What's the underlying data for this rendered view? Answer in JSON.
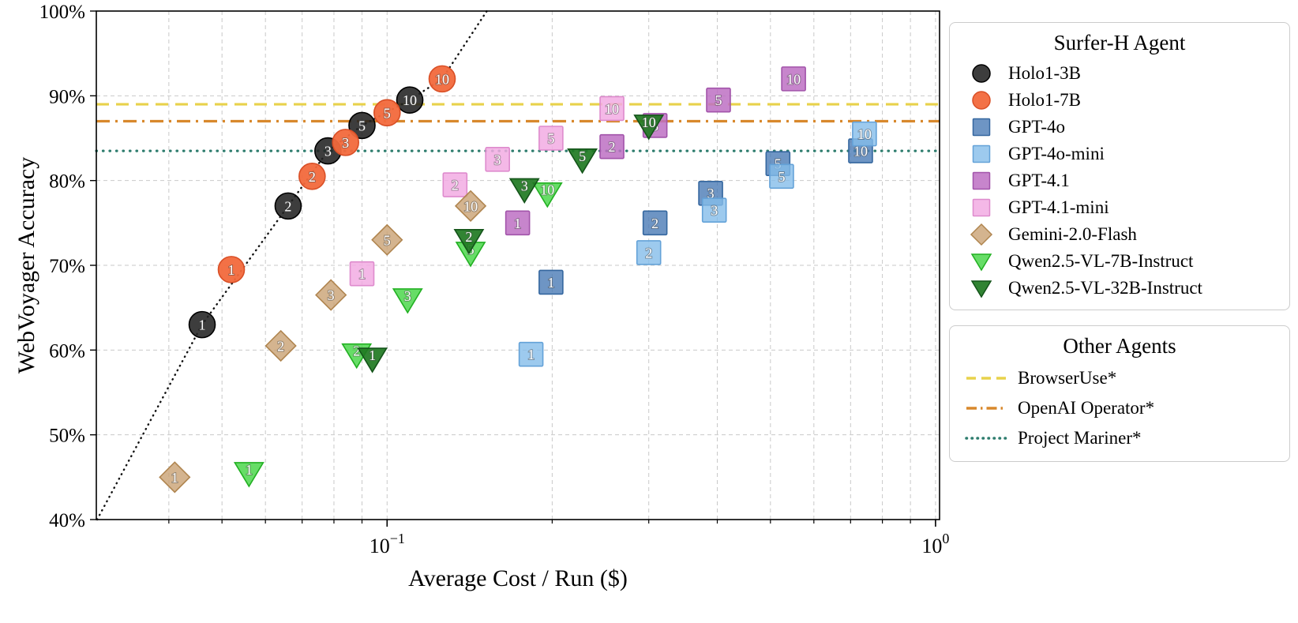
{
  "chart_data": {
    "type": "scatter",
    "title": "",
    "xlabel": "Average Cost / Run ($)",
    "ylabel": "WebVoyager Accuracy",
    "x_scale": "log",
    "xlim": [
      0.0295,
      1.017
    ],
    "ylim": [
      40,
      100
    ],
    "grid": true,
    "y_ticks": [
      {
        "value": 40,
        "label": "40%"
      },
      {
        "value": 50,
        "label": "50%"
      },
      {
        "value": 60,
        "label": "60%"
      },
      {
        "value": 70,
        "label": "70%"
      },
      {
        "value": 80,
        "label": "80%"
      },
      {
        "value": 90,
        "label": "90%"
      },
      {
        "value": 100,
        "label": "100%"
      }
    ],
    "x_major_ticks": [
      {
        "value": 0.1,
        "mantissa": "10",
        "exponent": "−1"
      },
      {
        "value": 1.0,
        "mantissa": "10",
        "exponent": "0"
      }
    ],
    "x_minor_ticks": [
      0.04,
      0.05,
      0.06,
      0.07,
      0.08,
      0.09,
      0.1,
      0.2,
      0.3,
      0.4,
      0.5,
      0.6,
      0.7,
      0.8,
      0.9,
      1.0
    ],
    "series": [
      {
        "name": "Holo1-3B",
        "marker": "circle",
        "fill": "#222222",
        "edge": "#000000",
        "opacity": 0.88,
        "points": [
          {
            "x": 0.046,
            "y": 63,
            "label": "1"
          },
          {
            "x": 0.066,
            "y": 77,
            "label": "2"
          },
          {
            "x": 0.078,
            "y": 83.5,
            "label": "3"
          },
          {
            "x": 0.09,
            "y": 86.5,
            "label": "5"
          },
          {
            "x": 0.11,
            "y": 89.5,
            "label": "10"
          }
        ]
      },
      {
        "name": "Holo1-7B",
        "marker": "circle",
        "fill": "#f2693c",
        "edge": "#d94f26",
        "opacity": 0.95,
        "points": [
          {
            "x": 0.052,
            "y": 69.5,
            "label": "1"
          },
          {
            "x": 0.073,
            "y": 80.5,
            "label": "2"
          },
          {
            "x": 0.084,
            "y": 84.5,
            "label": "3"
          },
          {
            "x": 0.1,
            "y": 88,
            "label": "5"
          },
          {
            "x": 0.126,
            "y": 92,
            "label": "10"
          }
        ]
      },
      {
        "name": "GPT-4o",
        "marker": "square",
        "fill": "#4a7ab5",
        "edge": "#35679f",
        "opacity": 0.8,
        "points": [
          {
            "x": 0.199,
            "y": 68,
            "label": "1"
          },
          {
            "x": 0.308,
            "y": 75,
            "label": "2"
          },
          {
            "x": 0.389,
            "y": 78.5,
            "label": "3"
          },
          {
            "x": 0.516,
            "y": 82,
            "label": "5"
          },
          {
            "x": 0.73,
            "y": 83.5,
            "label": "10"
          }
        ]
      },
      {
        "name": "GPT-4o-mini",
        "marker": "square",
        "fill": "#85bdea",
        "edge": "#64a2d8",
        "opacity": 0.8,
        "points": [
          {
            "x": 0.183,
            "y": 59.5,
            "label": "1"
          },
          {
            "x": 0.3,
            "y": 71.5,
            "label": "2"
          },
          {
            "x": 0.395,
            "y": 76.5,
            "label": "3"
          },
          {
            "x": 0.524,
            "y": 80.5,
            "label": "5"
          },
          {
            "x": 0.742,
            "y": 85.5,
            "label": "10"
          }
        ]
      },
      {
        "name": "GPT-4.1",
        "marker": "square",
        "fill": "#bd70c3",
        "edge": "#a254aa",
        "opacity": 0.85,
        "points": [
          {
            "x": 0.173,
            "y": 75,
            "label": "1"
          },
          {
            "x": 0.257,
            "y": 84,
            "label": "2"
          },
          {
            "x": 0.308,
            "y": 86.5,
            "label": "3"
          },
          {
            "x": 0.402,
            "y": 89.5,
            "label": "5"
          },
          {
            "x": 0.551,
            "y": 92,
            "label": "10"
          }
        ]
      },
      {
        "name": "GPT-4.1-mini",
        "marker": "square",
        "fill": "#f2ace3",
        "edge": "#de8bcd",
        "opacity": 0.85,
        "points": [
          {
            "x": 0.09,
            "y": 69,
            "label": "1"
          },
          {
            "x": 0.133,
            "y": 79.5,
            "label": "2"
          },
          {
            "x": 0.159,
            "y": 82.5,
            "label": "3"
          },
          {
            "x": 0.199,
            "y": 85,
            "label": "5"
          },
          {
            "x": 0.257,
            "y": 88.5,
            "label": "10"
          }
        ]
      },
      {
        "name": "Gemini-2.0-Flash",
        "marker": "diamond",
        "fill": "#c9a173",
        "edge": "#b0854f",
        "opacity": 0.8,
        "points": [
          {
            "x": 0.041,
            "y": 45,
            "label": "1"
          },
          {
            "x": 0.064,
            "y": 60.5,
            "label": "2"
          },
          {
            "x": 0.079,
            "y": 66.5,
            "label": "3"
          },
          {
            "x": 0.1,
            "y": 73,
            "label": "5"
          },
          {
            "x": 0.142,
            "y": 77,
            "label": "10"
          }
        ]
      },
      {
        "name": "Qwen2.5-VL-7B-Instruct",
        "marker": "triangle-down",
        "fill": "#41d441",
        "edge": "#22b022",
        "opacity": 0.8,
        "points": [
          {
            "x": 0.056,
            "y": 45.5,
            "label": "1"
          },
          {
            "x": 0.088,
            "y": 59.5,
            "label": "2"
          },
          {
            "x": 0.109,
            "y": 66,
            "label": "3"
          },
          {
            "x": 0.142,
            "y": 71.5,
            "label": "5"
          },
          {
            "x": 0.196,
            "y": 78.5,
            "label": "10"
          }
        ]
      },
      {
        "name": "Qwen2.5-VL-32B-Instruct",
        "marker": "triangle-down",
        "fill": "#1f7a22",
        "edge": "#14541a",
        "opacity": 0.92,
        "points": [
          {
            "x": 0.094,
            "y": 59,
            "label": "1"
          },
          {
            "x": 0.141,
            "y": 73,
            "label": "2"
          },
          {
            "x": 0.178,
            "y": 79,
            "label": "3"
          },
          {
            "x": 0.227,
            "y": 82.5,
            "label": "5"
          },
          {
            "x": 0.3,
            "y": 86.5,
            "label": "10"
          }
        ]
      }
    ],
    "reference_lines": [
      {
        "name": "BrowserUse*",
        "y": 89,
        "color": "#e8d24b",
        "style": "dashed"
      },
      {
        "name": "OpenAI Operator*",
        "y": 87,
        "color": "#d8882c",
        "style": "dashdot"
      },
      {
        "name": "Project Mariner*",
        "y": 83.5,
        "color": "#2e7d6e",
        "style": "dotted"
      }
    ],
    "pareto_line": {
      "style": "dotted",
      "color": "#111111",
      "points": [
        {
          "x": 0.0296,
          "y": 40
        },
        {
          "x": 0.046,
          "y": 63
        },
        {
          "x": 0.066,
          "y": 77
        },
        {
          "x": 0.078,
          "y": 83.5
        },
        {
          "x": 0.09,
          "y": 86.5
        },
        {
          "x": 0.11,
          "y": 89.5
        },
        {
          "x": 0.126,
          "y": 92
        },
        {
          "x": 0.152,
          "y": 100
        }
      ]
    }
  },
  "legends": {
    "surfer_h": {
      "title": "Surfer-H Agent"
    },
    "other": {
      "title": "Other Agents"
    }
  }
}
